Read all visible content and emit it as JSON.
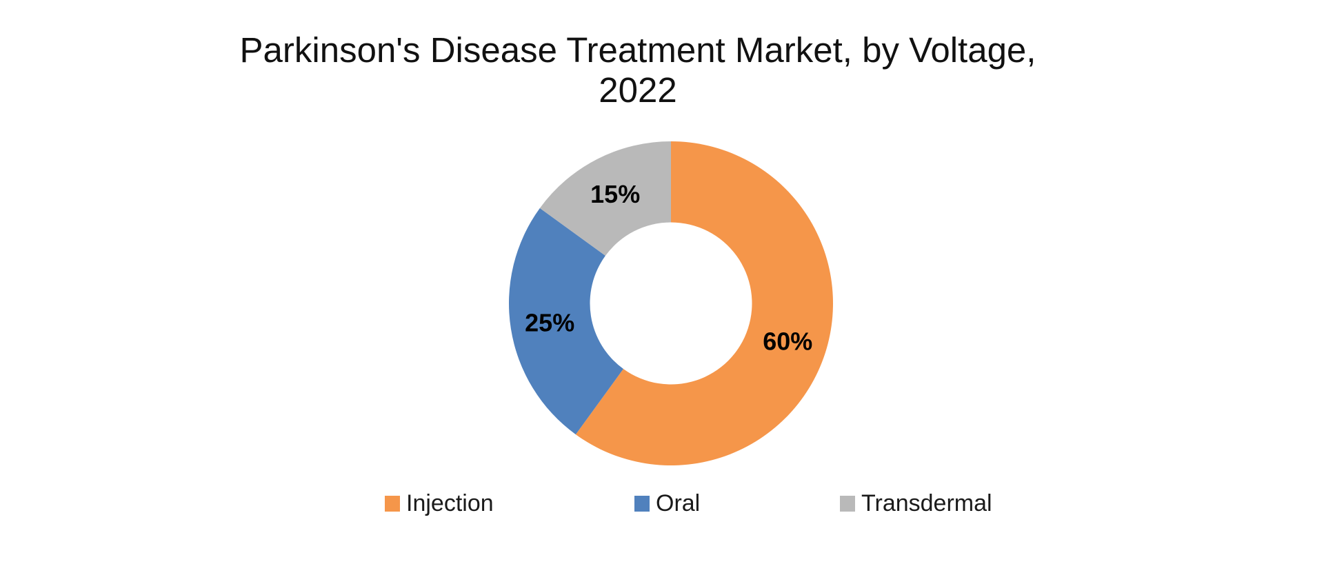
{
  "chart_data": {
    "type": "pie",
    "subtype": "donut",
    "title": "Parkinson's Disease Treatment Market, by Voltage, 2022",
    "title_lines": [
      "Parkinson's Disease Treatment Market, by Voltage,",
      "2022"
    ],
    "categories": [
      "Injection",
      "Oral",
      "Transdermal"
    ],
    "values": [
      60,
      25,
      15
    ],
    "data_labels": [
      "60%",
      "25%",
      "15%"
    ],
    "colors": [
      "#F5964A",
      "#5081BD",
      "#B9B9B9"
    ],
    "label_color": "#000000",
    "title_color": "#111111",
    "background_color": "#FFFFFF",
    "hole_ratio": 0.5,
    "start_angle_deg": 0,
    "direction": "clockwise",
    "legend_position": "bottom"
  }
}
